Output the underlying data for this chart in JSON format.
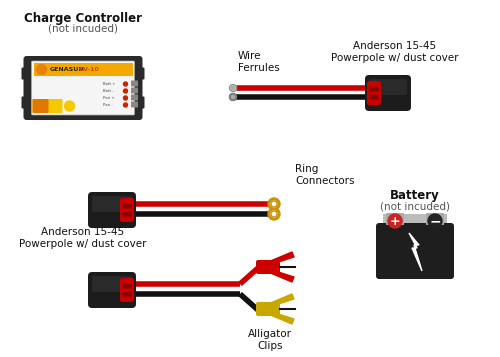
{
  "bg_color": "#ffffff",
  "labels": {
    "charge_controller_title": "Charge Controller",
    "charge_controller_sub": "(not incuded)",
    "wire_ferrules": "Wire\nFerrules",
    "anderson_top": "Anderson 15-45\nPowerpole w/ dust cover",
    "ring_connectors": "Ring\nConnectors",
    "battery_title": "Battery",
    "battery_sub": "(not incuded)",
    "anderson_bottom_left": "Anderson 15-45\nPowerpole w/ dust cover",
    "alligator": "Alligator\nClips"
  },
  "colors": {
    "white": "#ffffff",
    "connector_black": "#1a1a1a",
    "connector_body": "#222222",
    "wire_red": "#cc0000",
    "wire_black": "#111111",
    "ferrule_white": "#e0e0e0",
    "ferrule_dark": "#555555",
    "ring_gold": "#c8920a",
    "allig_red": "#cc0000",
    "allig_gold": "#c8a800",
    "battery_dark": "#1a1a1a",
    "battery_mid": "#888888",
    "battery_light": "#cccccc",
    "pos_red": "#cc2222",
    "neg_dark": "#222222",
    "genasun_orange": "#e8820a",
    "label_color": "#111111"
  }
}
